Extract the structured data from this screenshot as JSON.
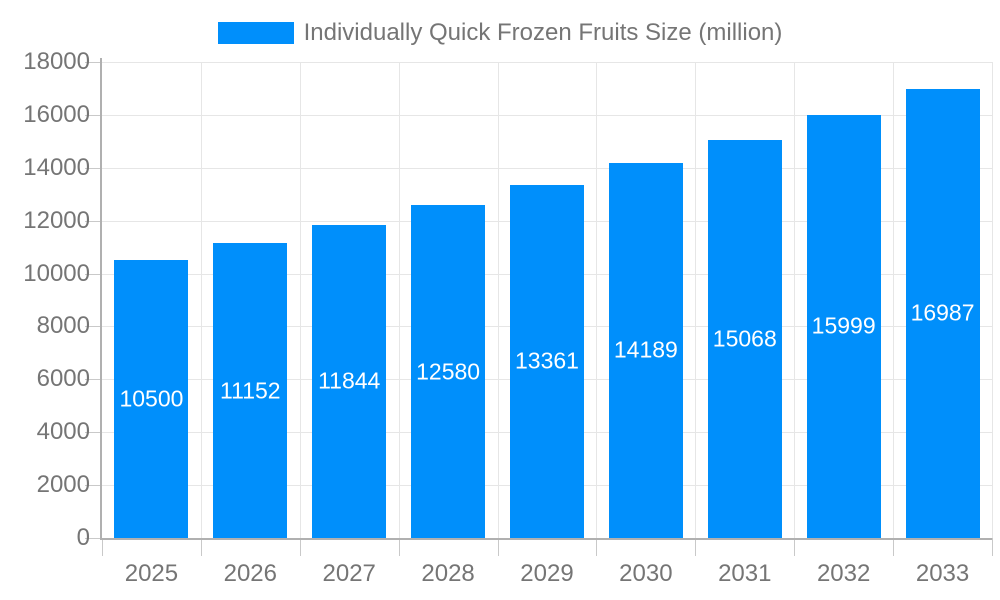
{
  "chart_data": {
    "type": "bar",
    "categories": [
      "2025",
      "2026",
      "2027",
      "2028",
      "2029",
      "2030",
      "2031",
      "2032",
      "2033"
    ],
    "values": [
      10500,
      11152,
      11844,
      12580,
      13361,
      14189,
      15068,
      15999,
      16987
    ],
    "title": "",
    "xlabel": "",
    "ylabel": "",
    "legend": "Individually Quick Frozen Fruits Size (million)",
    "legend_position": "top-center",
    "ylim": [
      0,
      18000
    ],
    "ytick_step": 2000,
    "grid": true,
    "bar_color": "#008ffb",
    "bar_label_color": "#ffffff",
    "axis_text_color": "#757575",
    "grid_color": "#e6e6e6",
    "axis_line_color": "#b0b0b0"
  }
}
